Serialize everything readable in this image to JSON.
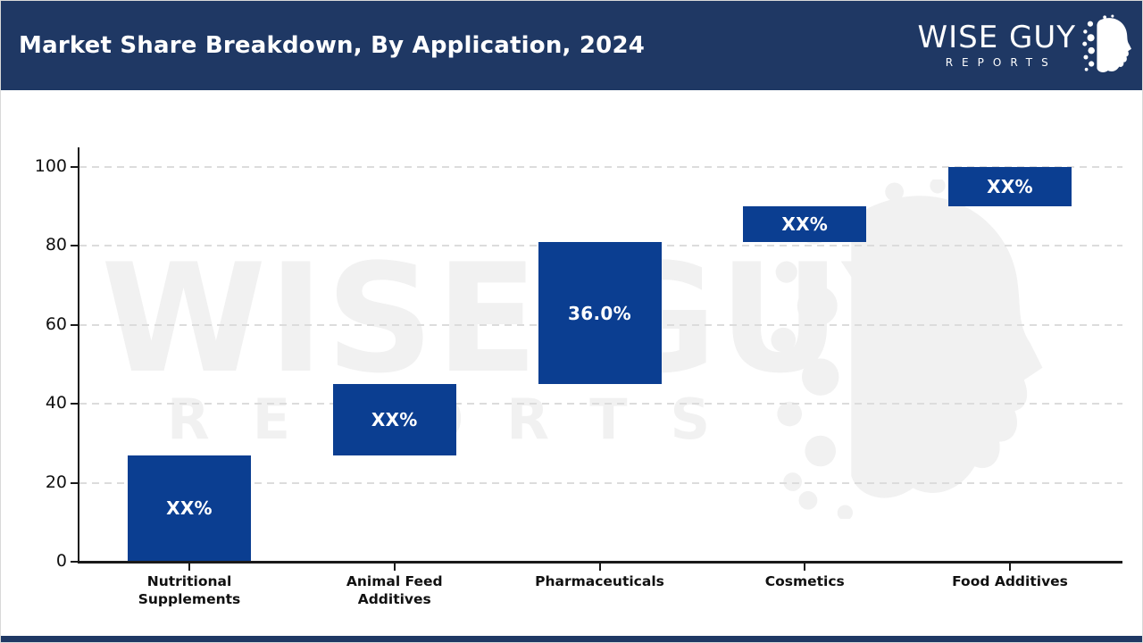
{
  "header": {
    "title": "Market Share Breakdown, By Application, 2024",
    "bg_color": "#1f3864",
    "logo": {
      "wordmark": "WISE GUY",
      "subtext": "REPORTS"
    }
  },
  "watermark": {
    "wordmark": "WISE GUY",
    "subtext": "REPORTS"
  },
  "chart_data": {
    "type": "bar",
    "variant": "waterfall",
    "title": "Market Share Breakdown, By Application, 2024",
    "categories": [
      "Nutritional Supplements",
      "Animal Feed Additives",
      "Pharmaceuticals",
      "Cosmetics",
      "Food Additives"
    ],
    "category_lines": [
      [
        "Nutritional",
        "Supplements"
      ],
      [
        "Animal Feed",
        "Additives"
      ],
      [
        "Pharmaceuticals"
      ],
      [
        "Cosmetics"
      ],
      [
        "Food Additives"
      ]
    ],
    "segments": [
      {
        "category": "Nutritional Supplements",
        "start": 0,
        "end": 27,
        "label": "XX%"
      },
      {
        "category": "Animal Feed Additives",
        "start": 27,
        "end": 45,
        "label": "XX%"
      },
      {
        "category": "Pharmaceuticals",
        "start": 45,
        "end": 81,
        "label": "36.0%"
      },
      {
        "category": "Cosmetics",
        "start": 81,
        "end": 90,
        "label": "XX%"
      },
      {
        "category": "Food Additives",
        "start": 90,
        "end": 100,
        "label": "XX%"
      }
    ],
    "yticks": [
      0,
      20,
      40,
      60,
      80,
      100
    ],
    "ylim": [
      0,
      105
    ],
    "xlabel": "",
    "ylabel": "",
    "grid": "horizontal-dashed",
    "legend": "none",
    "bar_color": "#0b3e91",
    "bar_label_color": "#ffffff",
    "axis_color": "#1a1a1a",
    "gridline_color": "#dcdcdc",
    "watermark_color": "#f1f1f1"
  }
}
